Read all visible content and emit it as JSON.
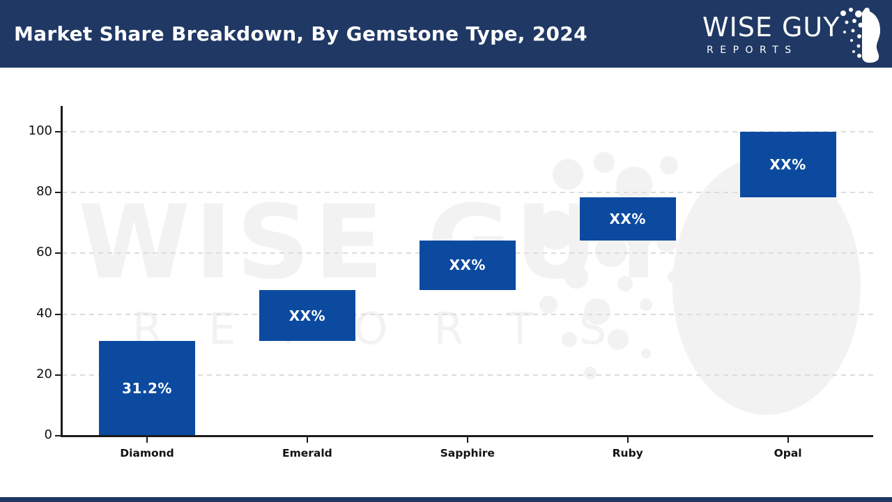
{
  "header": {
    "title": "Market Share Breakdown, By Gemstone Type, 2024",
    "brand_line1": "WISE GUY",
    "brand_line2": "REPORTS",
    "bg_color": "#1F3864"
  },
  "watermark": {
    "line1": "WISE GUY",
    "line2": "REPORTS"
  },
  "chart_data": {
    "type": "bar",
    "subtype": "waterfall",
    "title": "Market Share Breakdown, By Gemstone Type, 2024",
    "xlabel": "",
    "ylabel": "",
    "categories": [
      "Diamond",
      "Emerald",
      "Sapphire",
      "Ruby",
      "Opal"
    ],
    "segments": [
      {
        "category": "Diamond",
        "start": 0,
        "end": 31.2,
        "label": "31.2%"
      },
      {
        "category": "Emerald",
        "start": 31.2,
        "end": 47.9,
        "label": "XX%"
      },
      {
        "category": "Sapphire",
        "start": 48,
        "end": 64.2,
        "label": "XX%"
      },
      {
        "category": "Ruby",
        "start": 64.2,
        "end": 78.4,
        "label": "XX%"
      },
      {
        "category": "Opal",
        "start": 78.4,
        "end": 100,
        "label": "XX%"
      }
    ],
    "yticks": [
      0,
      20,
      40,
      60,
      80,
      100
    ],
    "ylim": [
      0,
      108
    ],
    "bar_color": "#0C4AA0",
    "grid": "horizontal-dashed",
    "gridline_color": "#dcdcdc",
    "legend_position": "none"
  }
}
